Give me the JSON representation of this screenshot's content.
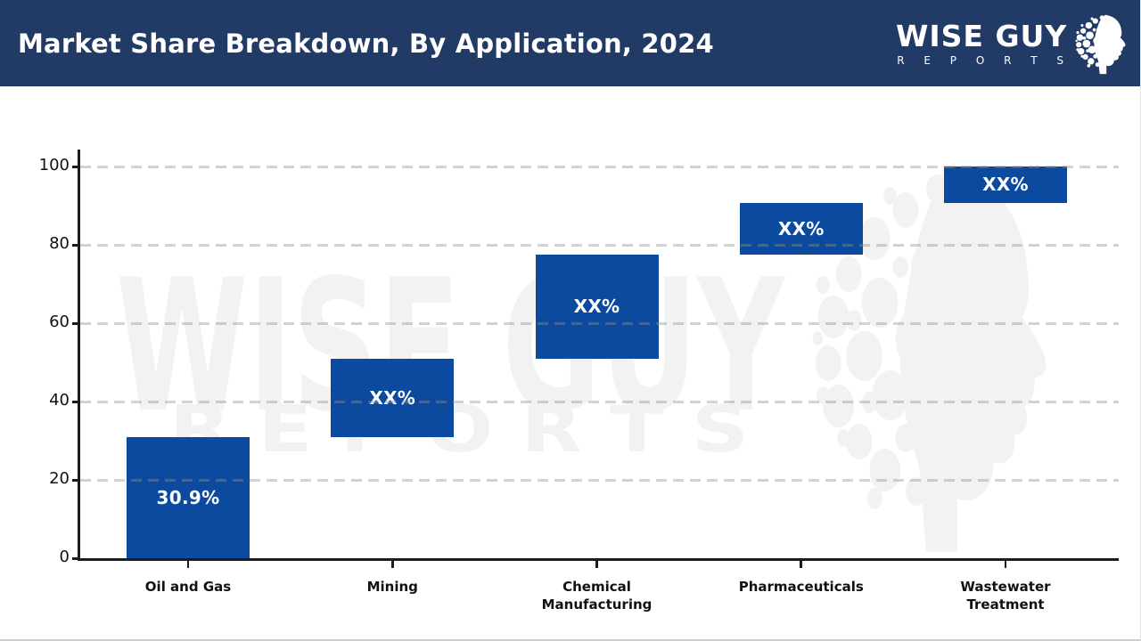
{
  "header": {
    "title": "Market Share Breakdown, By Application, 2024",
    "logo": {
      "line1": "WISE GUY",
      "line2": "R E P O R T S"
    }
  },
  "watermark": {
    "line1": "WISE GUY",
    "line2": "R E P O R T S"
  },
  "colors": {
    "header_bg": "#213a66",
    "bar": "#0b4a9e",
    "bar_label": "#ffffff",
    "axis": "#1c1c1c",
    "watermark": "#f2f2f2"
  },
  "chart_data": {
    "type": "bar",
    "subtype": "waterfall",
    "title": "Market Share Breakdown, By Application, 2024",
    "categories": [
      "Oil and Gas",
      "Mining",
      "Chemical Manufacturing",
      "Pharmaceuticals",
      "Wastewater Treatment"
    ],
    "segments": [
      {
        "category": "Oil and Gas",
        "label": "30.9%",
        "start": 0,
        "end": 30.9
      },
      {
        "category": "Mining",
        "label": "XX%",
        "start": 30.9,
        "end": 51.0
      },
      {
        "category": "Chemical Manufacturing",
        "label": "XX%",
        "start": 51.0,
        "end": 77.6
      },
      {
        "category": "Pharmaceuticals",
        "label": "XX%",
        "start": 77.6,
        "end": 90.7
      },
      {
        "category": "Wastewater Treatment",
        "label": "XX%",
        "start": 90.7,
        "end": 100.0
      }
    ],
    "yticks": [
      0,
      20,
      40,
      60,
      80,
      100
    ],
    "ylim": [
      0,
      104
    ],
    "xlabel": "",
    "ylabel": "",
    "grid": "horizontal-dashed",
    "legend": "none",
    "bar_color": "#0b4a9e"
  }
}
